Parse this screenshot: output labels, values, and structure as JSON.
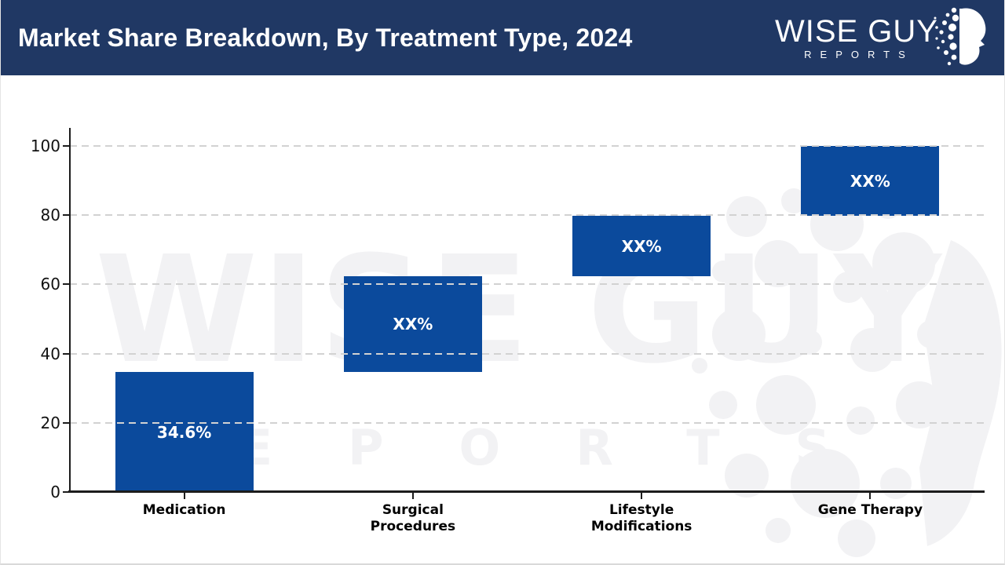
{
  "header": {
    "title": "Market Share Breakdown, By Treatment Type, 2024",
    "logo": {
      "line1": "WISE GUY",
      "line2": "REPORTS"
    }
  },
  "watermark": {
    "line1": "WISE GUY",
    "line2": "REPORTS"
  },
  "chart_data": {
    "type": "bar",
    "subtype": "waterfall",
    "title": "Market Share Breakdown, By Treatment Type, 2024",
    "categories": [
      "Medication",
      "Surgical\nProcedures",
      "Lifestyle\nModifications",
      "Gene Therapy"
    ],
    "bars": [
      {
        "category": "Medication",
        "start": 0,
        "end": 34.6,
        "label": "34.6%"
      },
      {
        "category": "Surgical Procedures",
        "start": 34.6,
        "end": 62.3,
        "label": "XX%"
      },
      {
        "category": "Lifestyle Modifications",
        "start": 62.3,
        "end": 79.8,
        "label": "XX%"
      },
      {
        "category": "Gene Therapy",
        "start": 79.8,
        "end": 100,
        "label": "XX%"
      }
    ],
    "yticks": [
      0,
      20,
      40,
      60,
      80,
      100
    ],
    "ylim": [
      0,
      100
    ],
    "xlabel": "",
    "ylabel": "",
    "grid": true,
    "legend": false
  },
  "colors": {
    "header_bg": "#203864",
    "bar": "#0b4a9c",
    "grid": "#d2d2d2",
    "axis": "#1c1c1c",
    "watermark": "#f2f2f4",
    "label_text": "#ffffff"
  }
}
